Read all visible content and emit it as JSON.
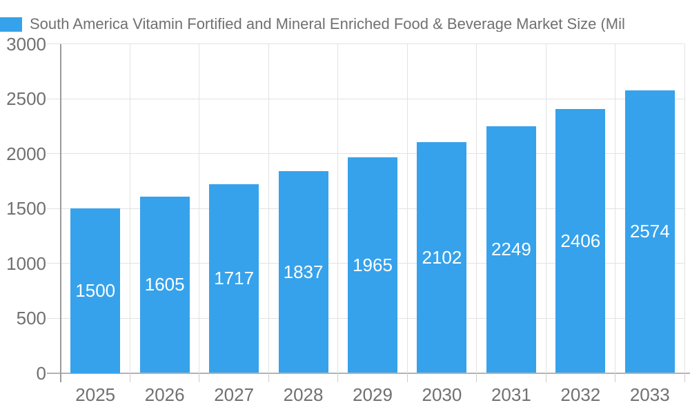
{
  "legend": {
    "label": "South America Vitamin Fortified and Mineral Enriched Food & Beverage Market Size (Mil",
    "swatch_color": "#36a2eb"
  },
  "chart_data": {
    "type": "bar",
    "title": "",
    "legend_position": "top-left",
    "series": [
      {
        "name": "South America Vitamin Fortified and Mineral Enriched Food & Beverage Market Size (Mil",
        "values": [
          1500,
          1605,
          1717,
          1837,
          1965,
          2102,
          2249,
          2406,
          2574
        ]
      }
    ],
    "categories": [
      "2025",
      "2026",
      "2027",
      "2028",
      "2029",
      "2030",
      "2031",
      "2032",
      "2033"
    ],
    "values": [
      1500,
      1605,
      1717,
      1837,
      1965,
      2102,
      2249,
      2406,
      2574
    ],
    "xlabel": "",
    "ylabel": "",
    "ylim": [
      0,
      3000
    ],
    "yticks": [
      0,
      500,
      1000,
      1500,
      2000,
      2500,
      3000
    ],
    "grid": true,
    "bar_color": "#36a2eb",
    "value_label_color": "#ffffff"
  },
  "colors": {
    "bar": "#36a2eb",
    "axis_text": "#707070",
    "grid": "#e2e2e2",
    "tick": "#cccccc",
    "axis_line": "#9b9b9b",
    "baseline": "#b3b3b3",
    "value_label": "#ffffff"
  }
}
